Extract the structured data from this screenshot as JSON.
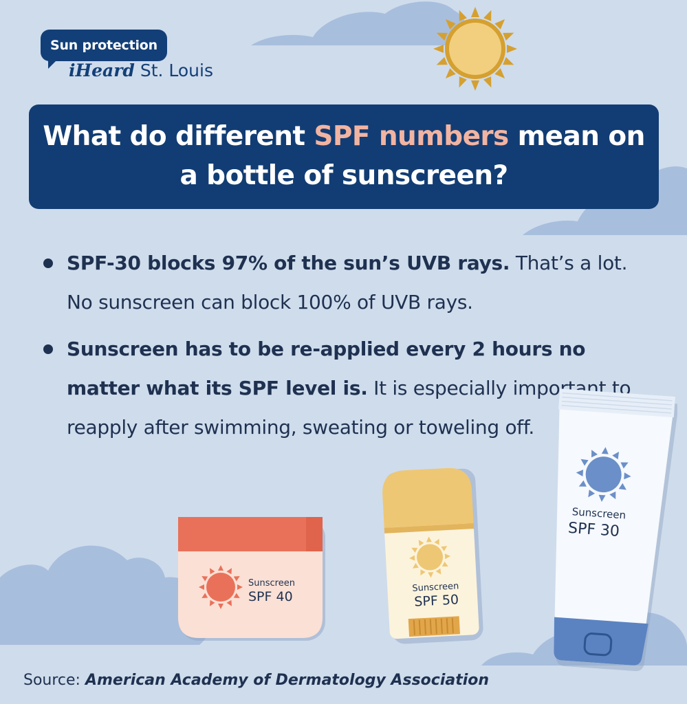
{
  "badge": {
    "label": "Sun protection"
  },
  "brand": {
    "name_bold": "iHeard",
    "name_rest": "St. Louis"
  },
  "title": {
    "part1": "What do different ",
    "highlight": "SPF numbers",
    "part2": " mean on a bottle of sunscreen?"
  },
  "bullets": [
    {
      "bold": "SPF-30 blocks 97% of the sun’s UVB rays.",
      "rest": " That’s a lot. No sunscreen can block 100% of UVB rays."
    },
    {
      "bold": "Sunscreen has to be re-applied every 2 hours no matter what its SPF level is.",
      "rest": " It is especially important to reapply after swimming, sweating or toweling off."
    }
  ],
  "products": [
    {
      "name": "Sunscreen",
      "spf": "SPF 40"
    },
    {
      "name": "Sunscreen",
      "spf": "SPF 50"
    },
    {
      "name": "Sunscreen",
      "spf": "SPF 30"
    }
  ],
  "source": {
    "prefix": "Source: ",
    "name": "American Academy of Dermatology Association"
  },
  "colors": {
    "background": "#cfdcec",
    "navy": "#133f78",
    "highlight": "#f2b4a2",
    "text": "#1f3150",
    "sun": "#d5a02f"
  },
  "icons": [
    "sun-icon",
    "cloud-icon"
  ]
}
